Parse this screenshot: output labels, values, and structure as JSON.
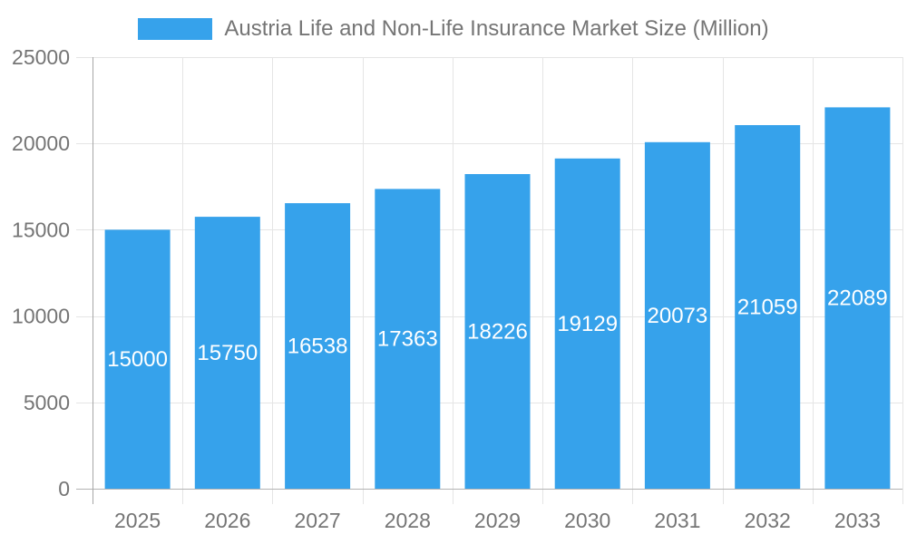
{
  "legend": {
    "label": "Austria Life and Non-Life Insurance Market Size (Million)"
  },
  "chart_data": {
    "type": "bar",
    "title": "Austria Life and Non-Life Insurance Market Size (Million)",
    "series_name": "Austria Life and Non-Life Insurance Market Size (Million)",
    "categories": [
      "2025",
      "2026",
      "2027",
      "2028",
      "2029",
      "2030",
      "2031",
      "2032",
      "2033"
    ],
    "values": [
      15000,
      15750,
      16538,
      17363,
      18226,
      19129,
      20073,
      21059,
      22089
    ],
    "xlabel": "",
    "ylabel": "",
    "ylim": [
      0,
      25000
    ],
    "yticks": [
      0,
      5000,
      10000,
      15000,
      20000,
      25000
    ],
    "grid": true,
    "legend_position": "top",
    "bar_value_labels_visible": true,
    "colors": {
      "bar": "#36a2eb",
      "axis_text": "#757575",
      "bar_label_text": "#ffffff",
      "gridline": "#e5e5e5",
      "y_axis_line": "#a6a6a6",
      "x_axis_line": "#b3b3b3",
      "background": "#ffffff"
    }
  }
}
